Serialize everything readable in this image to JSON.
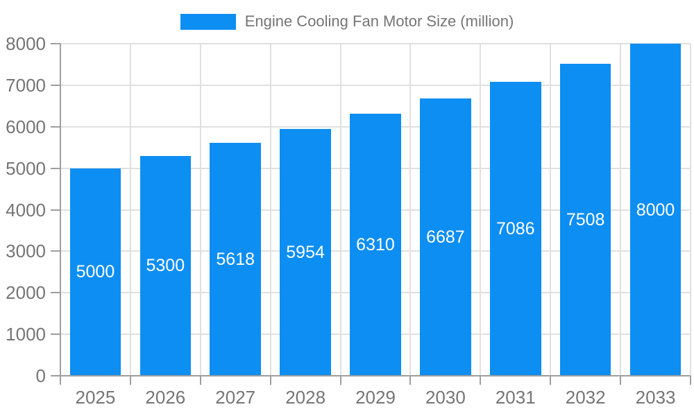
{
  "chart_data": {
    "type": "bar",
    "title": "Engine Cooling Fan Motor Size (million)",
    "categories": [
      "2025",
      "2026",
      "2027",
      "2028",
      "2029",
      "2030",
      "2031",
      "2032",
      "2033"
    ],
    "values": [
      5000,
      5300,
      5618,
      5954,
      6310,
      6687,
      7086,
      7508,
      8000
    ],
    "xlabel": "",
    "ylabel": "",
    "ylim": [
      0,
      8000
    ],
    "yticks": [
      0,
      1000,
      2000,
      3000,
      4000,
      5000,
      6000,
      7000,
      8000
    ],
    "grid": "on",
    "legend_position": "top",
    "bar_label_position": "inside-middle"
  },
  "legend": {
    "swatch_icon": "series-color-swatch"
  },
  "colors": {
    "bar": "#0d8ef2",
    "bar_label_text": "#ffffff",
    "axis_line": "#9e9e9e",
    "gridline": "#e0e0e0",
    "tick_label_text": "#757575",
    "legend_text": "#757575",
    "background": "#ffffff"
  }
}
